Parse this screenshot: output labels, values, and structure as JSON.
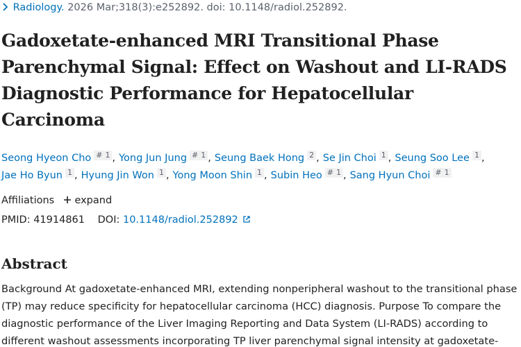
{
  "citation": {
    "journal": "Radiology.",
    "details": "2026 Mar;318(3):e252892. doi: 10.1148/radiol.252892."
  },
  "title_lines": [
    "Gadoxetate-enhanced MRI Transitional Phase",
    "Parenchymal Signal: Effect on Washout and LI-RADS",
    "Diagnostic Performance for Hepatocellular",
    "Carcinoma"
  ],
  "separator": ",",
  "author_lines": [
    [
      {
        "name": "Seong Hyeon Cho",
        "marks": [
          "#",
          "1"
        ]
      },
      {
        "name": "Yong Jun Jung",
        "marks": [
          "#",
          "1"
        ]
      },
      {
        "name": "Seung Baek Hong",
        "marks": [
          "2"
        ]
      },
      {
        "name": "Se Jin Choi",
        "marks": [
          "1"
        ]
      },
      {
        "name": "Seung Soo Lee",
        "marks": [
          "1"
        ]
      }
    ],
    [
      {
        "name": "Jae Ho Byun",
        "marks": [
          "1"
        ]
      },
      {
        "name": "Hyung Jin Won",
        "marks": [
          "1"
        ]
      },
      {
        "name": "Yong Moon Shin",
        "marks": [
          "1"
        ]
      },
      {
        "name": "Subin Heo",
        "marks": [
          "#",
          "1"
        ]
      },
      {
        "name": "Sang Hyun Choi",
        "marks": [
          "#",
          "1"
        ]
      }
    ]
  ],
  "affiliations": {
    "label": "Affiliations",
    "toggle": "expand"
  },
  "ids": {
    "pmid_label": "PMID:",
    "pmid": "41914861",
    "doi_label": "DOI:",
    "doi": "10.1148/radiol.252892"
  },
  "abstract": {
    "heading": "Abstract",
    "lines": [
      "Background At gadoxetate-enhanced MRI, extending nonperipheral washout to the transitional phase",
      "(TP) may reduce specificity for hepatocellular carcinoma (HCC) diagnosis. Purpose To compare the",
      "diagnostic performance of the Liver Imaging Reporting and Data System (LI-RADS) according to",
      "different washout assessments incorporating TP liver parenchymal signal intensity at gadoxetate-"
    ]
  }
}
